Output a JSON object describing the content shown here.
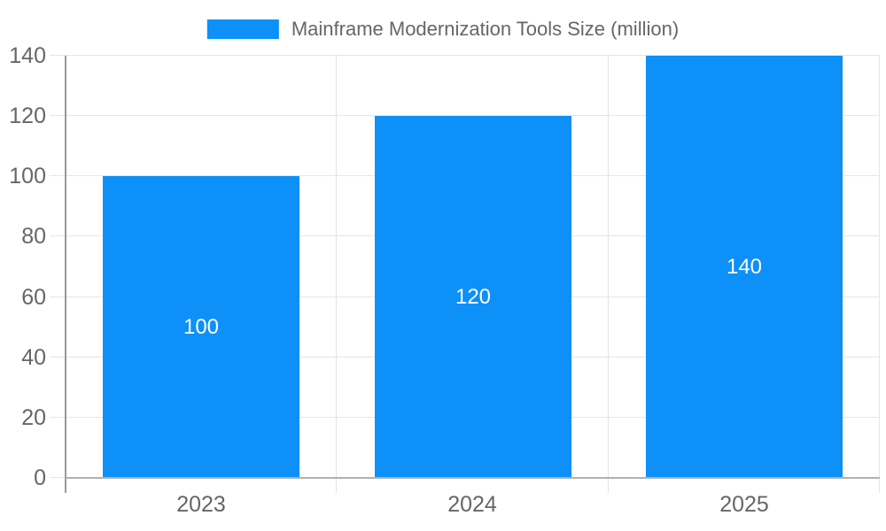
{
  "legend": {
    "label": "Mainframe Modernization Tools Size (million)"
  },
  "chart_data": {
    "type": "bar",
    "title": "Mainframe Modernization Tools Size (million)",
    "categories": [
      "2023",
      "2024",
      "2025"
    ],
    "values": [
      100,
      120,
      140
    ],
    "value_labels": [
      "100",
      "120",
      "140"
    ],
    "xlabel": "",
    "ylabel": "",
    "ylim": [
      0,
      140
    ],
    "yticks": [
      0,
      20,
      40,
      60,
      80,
      100,
      120,
      140
    ],
    "grid": true,
    "legend_position": "top"
  },
  "colors": {
    "bar": "#0d90f8",
    "grid": "#e5e5e5",
    "axis_x": "#b1b1b1",
    "axis_y": "#999999",
    "tick_text": "#666666",
    "value_label_text": "#ffffff",
    "background": "#ffffff"
  }
}
